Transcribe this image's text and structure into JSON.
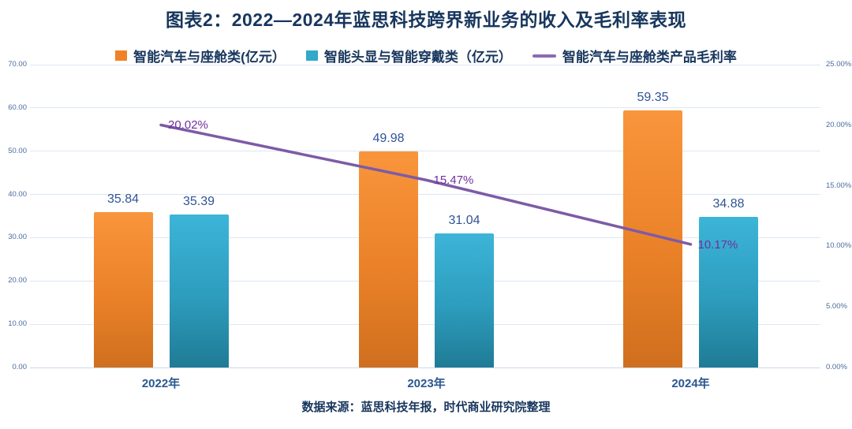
{
  "title": "图表2：2022—2024年蓝思科技跨界新业务的收入及毛利率表现",
  "footer": "数据来源：蓝思科技年报，时代商业研究院整理",
  "legend": {
    "items": [
      {
        "label": "智能汽车与座舱类(亿元）",
        "type": "bar",
        "color": "#ef8227"
      },
      {
        "label": "智能头显与智能穿戴类（亿元）",
        "type": "bar",
        "color": "#31a9c9"
      },
      {
        "label": "智能汽车与座舱类产品毛利率",
        "type": "line",
        "color": "#8a6cb0"
      }
    ]
  },
  "axes": {
    "left": {
      "ticks": [
        "70.00",
        "60.00",
        "50.00",
        "40.00",
        "30.00",
        "20.00",
        "10.00",
        "0.00"
      ]
    },
    "right": {
      "ticks": [
        "25.00%",
        "20.00%",
        "15.00%",
        "10.00%",
        "5.00%",
        "0.00%"
      ]
    }
  },
  "chart_data": {
    "type": "bar+line",
    "title": "图表2：2022—2024年蓝思科技跨界新业务的收入及毛利率表现",
    "categories": [
      "2022年",
      "2023年",
      "2024年"
    ],
    "series": [
      {
        "name": "智能汽车与座舱类(亿元）",
        "type": "bar",
        "axis": "left",
        "color_top": "#f9953c",
        "color_mid": "#ea8128",
        "color_bottom": "#cf6f1e",
        "values": [
          35.84,
          49.98,
          59.35
        ],
        "labels": [
          "35.84",
          "49.98",
          "59.35"
        ]
      },
      {
        "name": "智能头显与智能穿戴类（亿元）",
        "type": "bar",
        "axis": "left",
        "color_top": "#3cb5d8",
        "color_mid": "#2d9cbd",
        "color_bottom": "#1f7b95",
        "values": [
          35.39,
          31.04,
          34.88
        ],
        "labels": [
          "35.39",
          "31.04",
          "34.88"
        ]
      },
      {
        "name": "智能汽车与座舱类产品毛利率",
        "type": "line",
        "axis": "right",
        "color": "#7d5ba6",
        "values": [
          20.02,
          15.47,
          10.17
        ],
        "labels": [
          "20.02%",
          "15.47%",
          "10.17%"
        ]
      }
    ],
    "ylim_left": [
      0,
      70
    ],
    "ylim_right": [
      0,
      25
    ],
    "grid": true,
    "legend_position": "top"
  }
}
